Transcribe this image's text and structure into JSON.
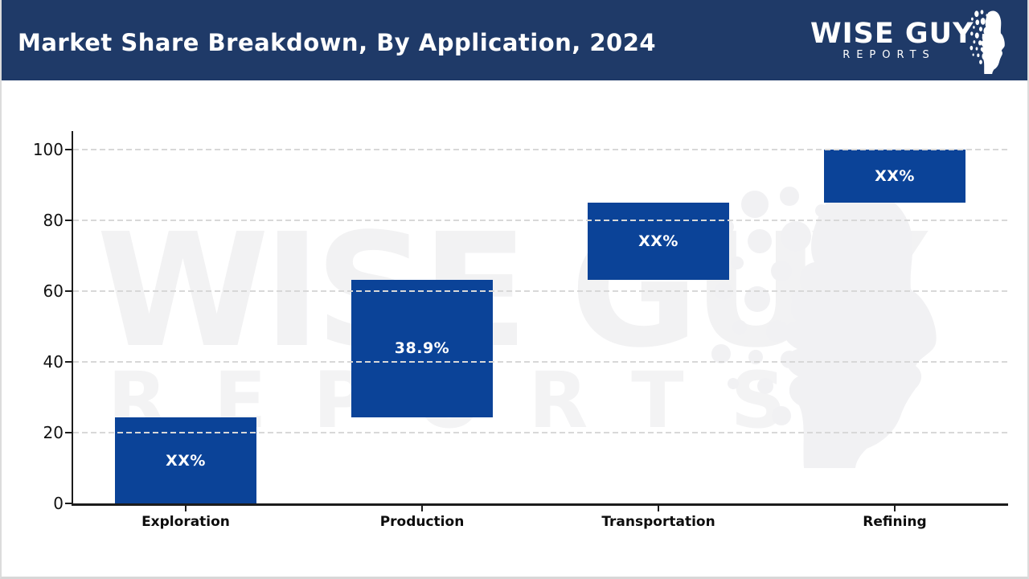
{
  "header": {
    "title": "Market Share Breakdown, By Application, 2024"
  },
  "logo": {
    "wordmark": "WISE GUY",
    "sub": "REPORTS"
  },
  "watermark": {
    "wordmark": "WISE GUY",
    "sub": "REPORTS"
  },
  "chart_data": {
    "type": "bar",
    "variant": "floating-waterfall",
    "title": "Market Share Breakdown, By Application, 2024",
    "xlabel": "",
    "ylabel": "",
    "ylim": [
      0,
      100
    ],
    "yticks": [
      0,
      20,
      40,
      60,
      80,
      100
    ],
    "grid": "horizontal-dashed, drawn above bars",
    "legend": "none",
    "categories": [
      "Exploration",
      "Production",
      "Transportation",
      "Refining"
    ],
    "bars": [
      {
        "category": "Exploration",
        "start": 0,
        "end": 24.3,
        "label": "XX%"
      },
      {
        "category": "Production",
        "start": 24.3,
        "end": 63.2,
        "label": "38.9%"
      },
      {
        "category": "Transportation",
        "start": 63.2,
        "end": 85.0,
        "label": "XX%"
      },
      {
        "category": "Refining",
        "start": 85.0,
        "end": 100.0,
        "label": "XX%"
      }
    ],
    "bar_color": "#0b4398",
    "bar_label_color": "#ffffff"
  },
  "colors": {
    "header_bg": "#1f3a68",
    "title_text": "#ffffff",
    "grid": "#d8d8d8",
    "axis": "#1c1c1c",
    "watermark": "#f2f2f3",
    "page_border": "#dcdcdc"
  }
}
